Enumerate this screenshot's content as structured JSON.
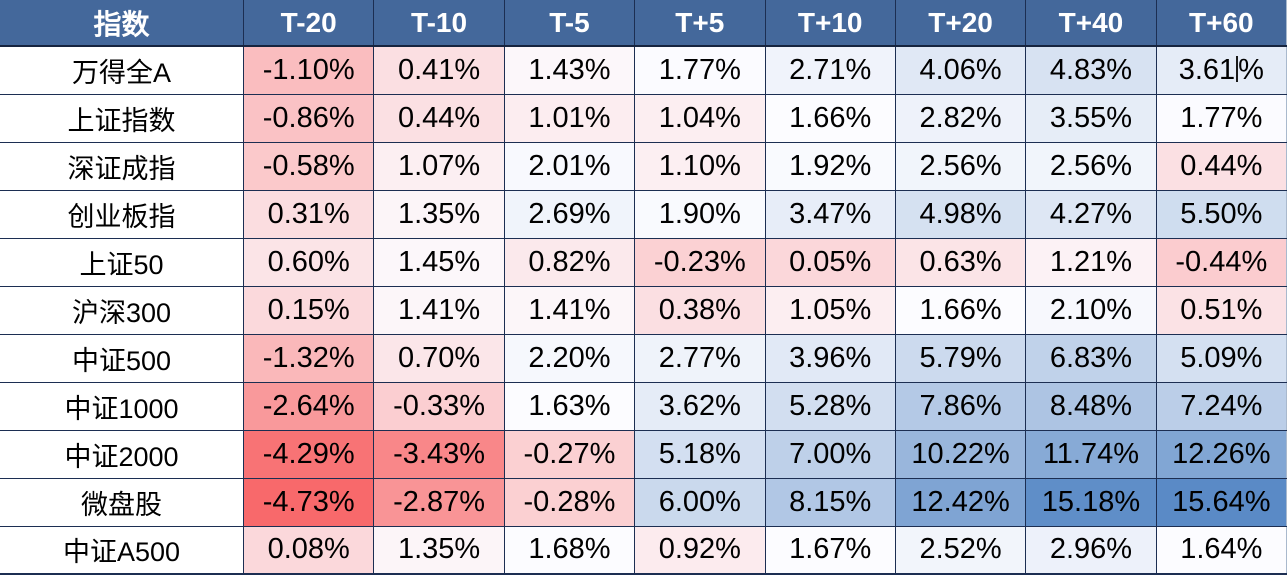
{
  "chart_data": {
    "type": "table",
    "index_column_header": "指数",
    "columns": [
      "T-20",
      "T-10",
      "T-5",
      "T+5",
      "T+10",
      "T+20",
      "T+40",
      "T+60"
    ],
    "rows": [
      {
        "label": "万得全A",
        "values": [
          -1.1,
          0.41,
          1.43,
          1.77,
          2.71,
          4.06,
          4.83,
          3.61
        ]
      },
      {
        "label": "上证指数",
        "values": [
          -0.86,
          0.44,
          1.01,
          1.04,
          1.66,
          2.82,
          3.55,
          1.77
        ]
      },
      {
        "label": "深证成指",
        "values": [
          -0.58,
          1.07,
          2.01,
          1.1,
          1.92,
          2.56,
          2.56,
          0.44
        ]
      },
      {
        "label": "创业板指",
        "values": [
          0.31,
          1.35,
          2.69,
          1.9,
          3.47,
          4.98,
          4.27,
          5.5
        ]
      },
      {
        "label": "上证50",
        "values": [
          0.6,
          1.45,
          0.82,
          -0.23,
          0.05,
          0.63,
          1.21,
          -0.44
        ]
      },
      {
        "label": "沪深300",
        "values": [
          0.15,
          1.41,
          1.41,
          0.38,
          1.05,
          1.66,
          2.1,
          0.51
        ]
      },
      {
        "label": "中证500",
        "values": [
          -1.32,
          0.7,
          2.2,
          2.77,
          3.96,
          5.79,
          6.83,
          5.09
        ]
      },
      {
        "label": "中证1000",
        "values": [
          -2.64,
          -0.33,
          1.63,
          3.62,
          5.28,
          7.86,
          8.48,
          7.24
        ]
      },
      {
        "label": "中证2000",
        "values": [
          -4.29,
          -3.43,
          -0.27,
          5.18,
          7.0,
          10.22,
          11.74,
          12.26
        ]
      },
      {
        "label": "微盘股",
        "values": [
          -4.73,
          -2.87,
          -0.28,
          6.0,
          8.15,
          12.42,
          15.18,
          15.64
        ]
      },
      {
        "label": "中证A500",
        "values": [
          0.08,
          1.35,
          1.68,
          0.92,
          1.67,
          2.52,
          2.96,
          1.64
        ]
      }
    ],
    "value_format": "percent_2dp",
    "color_scale": {
      "type": "3-color",
      "min_value": -4.73,
      "mid_value": 1.65,
      "max_value": 15.64,
      "min_color": "#F8696B",
      "mid_color": "#FCFCFF",
      "max_color": "#5A8AC6"
    },
    "legend_position": "none",
    "grid": true
  },
  "styles": {
    "header_bg": "#44689b",
    "header_text_color": "#FFFFFF",
    "border_color": "#1c2e52",
    "cell_text_color": "#000000"
  },
  "caret": {
    "row": 0,
    "col": 7
  }
}
